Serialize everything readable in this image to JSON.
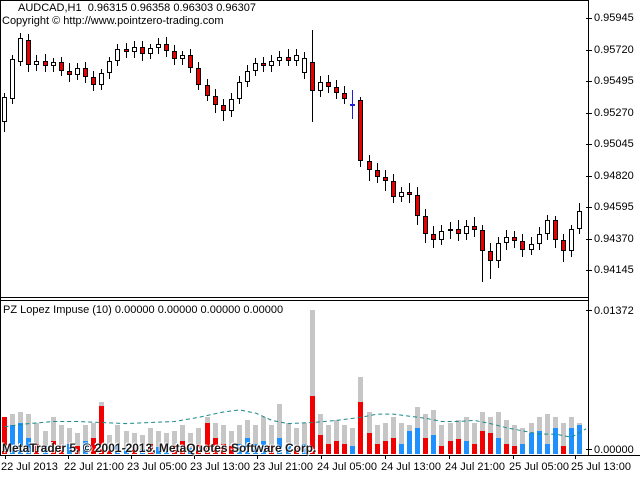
{
  "header": {
    "symbol_timeframe": "AUDCAD,H1",
    "open": "0.96315",
    "high": "0.96358",
    "low": "0.96303",
    "close": "0.96307",
    "copyright": "Copyright © http://www.pointzero-trading.com"
  },
  "indicator_header": {
    "label": "PZ Lopez Impuse (10)",
    "values_text": "0.00000 0.00000 0.00000 0.00000"
  },
  "watermark": "MetaTrader 5, © 2001-2013, MetaQuotes Software Corp.",
  "axes": {
    "price_labels": [
      "0.95945",
      "0.95720",
      "0.95495",
      "0.95270",
      "0.95045",
      "0.94820",
      "0.94595",
      "0.94370",
      "0.94145"
    ],
    "indicator_labels": [
      "0.01372",
      "0.00000"
    ],
    "time_labels": [
      "22 Jul 2013",
      "22 Jul 21:00",
      "23 Jul 05:00",
      "23 Jul 13:00",
      "23 Jul 21:00",
      "24 Jul 05:00",
      "24 Jul 13:00",
      "24 Jul 21:00",
      "25 Jul 05:00",
      "25 Jul 13:00"
    ]
  },
  "colors": {
    "background": "#ffffff",
    "foreground": "#000000",
    "bull_candle": "#ffffff",
    "bear_candle": "#e80000",
    "doji_blue": "#2020d0",
    "range_bar_gray": "#c6c6c6",
    "impulse_red": "#f00000",
    "impulse_blue": "#1e90ff",
    "signal_teal": "#1c8a8a"
  },
  "chart_data": [
    {
      "type": "candlestick",
      "title": "AUDCAD,H1 0.96315 0.96358 0.96303 0.96307",
      "interval": "H1",
      "grid": "off",
      "ylim": [
        0.94,
        0.9608
      ],
      "y_ticks": [
        0.95945,
        0.9572,
        0.95495,
        0.9527,
        0.95045,
        0.9482,
        0.94595,
        0.9437,
        0.94145
      ],
      "x_tick_labels": [
        "22 Jul 2013",
        "22 Jul 21:00",
        "23 Jul 05:00",
        "23 Jul 13:00",
        "23 Jul 21:00",
        "24 Jul 05:00",
        "24 Jul 13:00",
        "24 Jul 21:00",
        "25 Jul 05:00",
        "25 Jul 13:00"
      ],
      "candles_format": [
        "open",
        "high",
        "low",
        "close",
        "optional_special_color"
      ],
      "candles": [
        [
          0.952,
          0.9541,
          0.9513,
          0.9538
        ],
        [
          0.9537,
          0.9568,
          0.9533,
          0.9565
        ],
        [
          0.9563,
          0.9584,
          0.956,
          0.958
        ],
        [
          0.9579,
          0.9583,
          0.9556,
          0.9561
        ],
        [
          0.9561,
          0.9568,
          0.9557,
          0.9564
        ],
        [
          0.9564,
          0.9569,
          0.9556,
          0.956
        ],
        [
          0.956,
          0.9566,
          0.9556,
          0.9563
        ],
        [
          0.9563,
          0.9567,
          0.9553,
          0.9557
        ],
        [
          0.9557,
          0.9562,
          0.9549,
          0.9554
        ],
        [
          0.9554,
          0.9562,
          0.955,
          0.9559
        ],
        [
          0.9559,
          0.9563,
          0.9548,
          0.9552
        ],
        [
          0.9552,
          0.9557,
          0.9542,
          0.9547
        ],
        [
          0.9547,
          0.9558,
          0.9543,
          0.9555
        ],
        [
          0.9555,
          0.9567,
          0.9551,
          0.9564
        ],
        [
          0.9564,
          0.9576,
          0.956,
          0.9572
        ],
        [
          0.9572,
          0.9577,
          0.9566,
          0.957
        ],
        [
          0.957,
          0.9578,
          0.9566,
          0.9574
        ],
        [
          0.9574,
          0.9578,
          0.9564,
          0.9569
        ],
        [
          0.9569,
          0.9576,
          0.9565,
          0.9573
        ],
        [
          0.9573,
          0.958,
          0.9569,
          0.9576
        ],
        [
          0.9576,
          0.9581,
          0.9567,
          0.9571
        ],
        [
          0.9571,
          0.9575,
          0.9561,
          0.9565
        ],
        [
          0.9565,
          0.9571,
          0.9561,
          0.9568
        ],
        [
          0.9568,
          0.9572,
          0.9555,
          0.9559
        ],
        [
          0.9559,
          0.9563,
          0.9543,
          0.9547
        ],
        [
          0.9547,
          0.9551,
          0.9535,
          0.9539
        ],
        [
          0.9539,
          0.9544,
          0.9527,
          0.9532
        ],
        [
          0.9532,
          0.9537,
          0.9521,
          0.9528
        ],
        [
          0.9528,
          0.9541,
          0.9524,
          0.9537
        ],
        [
          0.9537,
          0.9553,
          0.9533,
          0.9549
        ],
        [
          0.9549,
          0.9561,
          0.9545,
          0.9557
        ],
        [
          0.9557,
          0.9566,
          0.9553,
          0.9562
        ],
        [
          0.9562,
          0.9567,
          0.9556,
          0.956
        ],
        [
          0.956,
          0.9568,
          0.9556,
          0.9564
        ],
        [
          0.9564,
          0.9571,
          0.956,
          0.9567
        ],
        [
          0.9567,
          0.9572,
          0.956,
          0.9564
        ],
        [
          0.9564,
          0.9572,
          0.956,
          0.9568
        ],
        [
          0.9555,
          0.957,
          0.9551,
          0.9566
        ],
        [
          0.9563,
          0.9586,
          0.952,
          0.9542
        ],
        [
          0.9542,
          0.9553,
          0.9538,
          0.9549
        ],
        [
          0.9549,
          0.9554,
          0.9541,
          0.9545
        ],
        [
          0.9545,
          0.955,
          0.9537,
          0.9541
        ],
        [
          0.9541,
          0.9546,
          0.9533,
          0.9537
        ],
        [
          0.9533,
          0.9543,
          0.9522,
          0.9533,
          "blue"
        ],
        [
          0.9536,
          0.9538,
          0.9488,
          0.9492
        ],
        [
          0.9492,
          0.9497,
          0.9478,
          0.9486
        ],
        [
          0.9486,
          0.9491,
          0.9477,
          0.9481
        ],
        [
          0.9481,
          0.9486,
          0.9471,
          0.9478
        ],
        [
          0.9478,
          0.9483,
          0.9462,
          0.9467
        ],
        [
          0.9467,
          0.9474,
          0.9463,
          0.947
        ],
        [
          0.947,
          0.9477,
          0.9462,
          0.9468
        ],
        [
          0.9468,
          0.9474,
          0.9447,
          0.9453
        ],
        [
          0.9453,
          0.9458,
          0.9434,
          0.944
        ],
        [
          0.944,
          0.9446,
          0.943,
          0.9436
        ],
        [
          0.9436,
          0.9447,
          0.9432,
          0.9442
        ],
        [
          0.9442,
          0.9449,
          0.9437,
          0.9444
        ],
        [
          0.9444,
          0.945,
          0.9435,
          0.944
        ],
        [
          0.944,
          0.945,
          0.9436,
          0.9446
        ],
        [
          0.9446,
          0.9452,
          0.9438,
          0.9443
        ],
        [
          0.9443,
          0.9447,
          0.9406,
          0.9428
        ],
        [
          0.9428,
          0.9434,
          0.9408,
          0.9421
        ],
        [
          0.9421,
          0.9438,
          0.9416,
          0.9434
        ],
        [
          0.9434,
          0.9443,
          0.9429,
          0.9438
        ],
        [
          0.9438,
          0.9442,
          0.943,
          0.9435
        ],
        [
          0.9435,
          0.944,
          0.9424,
          0.9429
        ],
        [
          0.9429,
          0.9438,
          0.9425,
          0.9433
        ],
        [
          0.9433,
          0.9445,
          0.9429,
          0.944
        ],
        [
          0.944,
          0.9454,
          0.9436,
          0.945
        ],
        [
          0.945,
          0.9453,
          0.943,
          0.9436
        ],
        [
          0.9436,
          0.944,
          0.942,
          0.9428
        ],
        [
          0.9428,
          0.9447,
          0.9424,
          0.9444
        ],
        [
          0.9444,
          0.9462,
          0.944,
          0.9457
        ]
      ]
    },
    {
      "type": "bar",
      "title": "PZ Lopez Impuse (10)",
      "parameter": "10",
      "readout_values": [
        0.0,
        0.0,
        0.0,
        0.0
      ],
      "ylim": [
        0,
        0.01372
      ],
      "y_ticks": [
        0.01372,
        0.0
      ],
      "bars_format": [
        "total_range",
        "impulse_portion",
        "impulse_color r=red b=blue"
      ],
      "bars": [
        [
          0.0035,
          0.0035,
          "r"
        ],
        [
          0.0038,
          0.0028,
          "b"
        ],
        [
          0.004,
          0.003,
          "b"
        ],
        [
          0.0038,
          0.0015,
          "b"
        ],
        [
          0.003,
          0.001,
          "r"
        ],
        [
          0.0022,
          0.0008,
          "b"
        ],
        [
          0.0035,
          0.0012,
          "r"
        ],
        [
          0.0028,
          0.0008,
          "r"
        ],
        [
          0.0025,
          0.001,
          "b"
        ],
        [
          0.002,
          0.0008,
          "r"
        ],
        [
          0.0028,
          0.0012,
          "b"
        ],
        [
          0.003,
          0.0015,
          "r"
        ],
        [
          0.005,
          0.0046,
          "r"
        ],
        [
          0.0018,
          0.0005,
          "r"
        ],
        [
          0.0028,
          0.0008,
          "b"
        ],
        [
          0.0022,
          0.0006,
          "b"
        ],
        [
          0.002,
          0.0006,
          "r"
        ],
        [
          0.0018,
          0.0005,
          "b"
        ],
        [
          0.0025,
          0.001,
          "r"
        ],
        [
          0.0022,
          0.0007,
          "b"
        ],
        [
          0.002,
          0.0005,
          "b"
        ],
        [
          0.0022,
          0.0008,
          "r"
        ],
        [
          0.0028,
          0.0012,
          "r"
        ],
        [
          0.002,
          0.0006,
          "b"
        ],
        [
          0.0025,
          0.0009,
          "r"
        ],
        [
          0.0035,
          0.003,
          "r"
        ],
        [
          0.003,
          0.0015,
          "r"
        ],
        [
          0.0028,
          0.001,
          "r"
        ],
        [
          0.0022,
          0.0008,
          "r"
        ],
        [
          0.0028,
          0.001,
          "b"
        ],
        [
          0.0032,
          0.0015,
          "b"
        ],
        [
          0.0028,
          0.001,
          "b"
        ],
        [
          0.0035,
          0.0012,
          "b"
        ],
        [
          0.0028,
          0.0008,
          "r"
        ],
        [
          0.0048,
          0.0015,
          "b"
        ],
        [
          0.003,
          0.001,
          "b"
        ],
        [
          0.0025,
          0.0008,
          "r"
        ],
        [
          0.003,
          0.001,
          "b"
        ],
        [
          0.01372,
          0.0055,
          "r"
        ],
        [
          0.0038,
          0.0018,
          "r"
        ],
        [
          0.0028,
          0.001,
          "r"
        ],
        [
          0.0032,
          0.0012,
          "r"
        ],
        [
          0.0028,
          0.001,
          "r"
        ],
        [
          0.0025,
          0.0008,
          "b"
        ],
        [
          0.0073,
          0.005,
          "r"
        ],
        [
          0.004,
          0.002,
          "r"
        ],
        [
          0.0028,
          0.001,
          "r"
        ],
        [
          0.003,
          0.0012,
          "r"
        ],
        [
          0.0035,
          0.0015,
          "r"
        ],
        [
          0.003,
          0.001,
          "b"
        ],
        [
          0.0028,
          0.0022,
          "b"
        ],
        [
          0.0045,
          0.0025,
          "b"
        ],
        [
          0.0038,
          0.0015,
          "r"
        ],
        [
          0.0042,
          0.0018,
          "b"
        ],
        [
          0.0028,
          0.0008,
          "r"
        ],
        [
          0.003,
          0.0012,
          "r"
        ],
        [
          0.0032,
          0.0014,
          "r"
        ],
        [
          0.0035,
          0.0012,
          "b"
        ],
        [
          0.003,
          0.001,
          "r"
        ],
        [
          0.004,
          0.0022,
          "r"
        ],
        [
          0.0035,
          0.002,
          "r"
        ],
        [
          0.004,
          0.0015,
          "b"
        ],
        [
          0.0032,
          0.001,
          "r"
        ],
        [
          0.0028,
          0.0008,
          "r"
        ],
        [
          0.0025,
          0.001,
          "b"
        ],
        [
          0.003,
          0.002,
          "b"
        ],
        [
          0.0035,
          0.0022,
          "b"
        ],
        [
          0.0038,
          0.001,
          "b"
        ],
        [
          0.0035,
          0.0025,
          "b"
        ],
        [
          0.003,
          0.0008,
          "r"
        ],
        [
          0.0035,
          0.0025,
          "b"
        ],
        [
          0.003,
          0.0028,
          "b"
        ]
      ],
      "signal_line": {
        "style": "dashed",
        "color": "#1c8a8a",
        "points_format": [
          "bar_index",
          "value"
        ],
        "points": [
          [
            0,
            0.0026
          ],
          [
            3,
            0.0029
          ],
          [
            6,
            0.0031
          ],
          [
            9,
            0.0031
          ],
          [
            12,
            0.003
          ],
          [
            15,
            0.0029
          ],
          [
            18,
            0.003
          ],
          [
            21,
            0.0031
          ],
          [
            24,
            0.0035
          ],
          [
            27,
            0.004
          ],
          [
            29,
            0.0042
          ],
          [
            31,
            0.0039
          ],
          [
            33,
            0.0032
          ],
          [
            35,
            0.0029
          ],
          [
            38,
            0.003
          ],
          [
            41,
            0.0032
          ],
          [
            44,
            0.0035
          ],
          [
            46,
            0.0038
          ],
          [
            48,
            0.0038
          ],
          [
            50,
            0.0036
          ],
          [
            52,
            0.0034
          ],
          [
            54,
            0.0031
          ],
          [
            56,
            0.0031
          ],
          [
            58,
            0.0032
          ],
          [
            60,
            0.0029
          ],
          [
            62,
            0.0025
          ],
          [
            64,
            0.0022
          ],
          [
            66,
            0.0019
          ],
          [
            68,
            0.0019
          ],
          [
            70,
            0.0016
          ],
          [
            71.8,
            0.0024
          ]
        ]
      }
    }
  ]
}
